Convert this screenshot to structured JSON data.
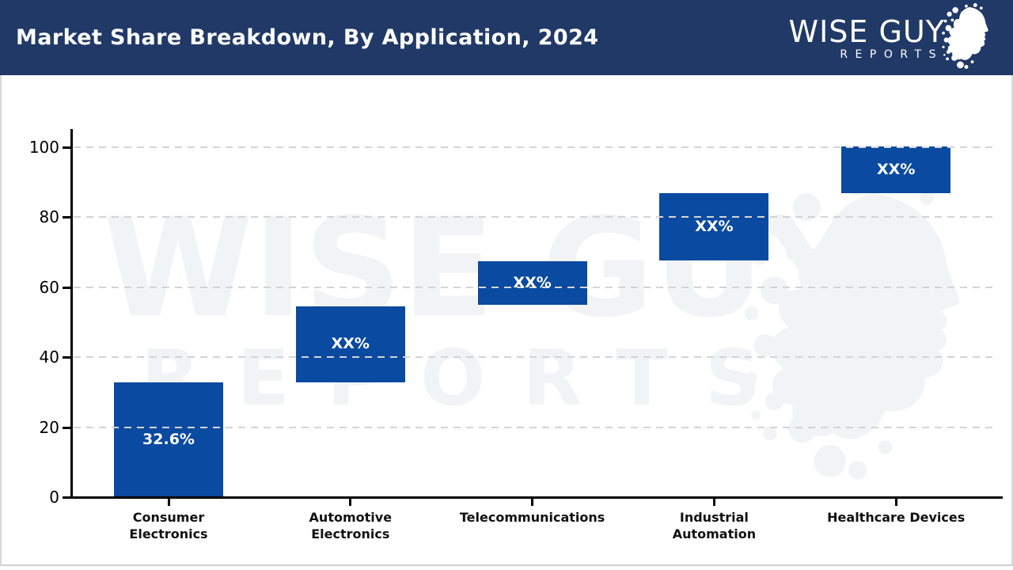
{
  "header": {
    "title": "Market Share Breakdown, By Application, 2024",
    "logo": {
      "line1": "WISE GUY",
      "line2": "REPORTS"
    }
  },
  "watermark": {
    "line1": "WISE GUY",
    "line2": "REPORTS"
  },
  "chart_data": {
    "type": "bar",
    "variant": "waterfall",
    "title": "Market Share Breakdown, By Application, 2024",
    "xlabel": "",
    "ylabel": "",
    "categories": [
      "Consumer\nElectronics",
      "Automotive\nElectronics",
      "Telecommunications",
      "Industrial\nAutomation",
      "Healthcare Devices"
    ],
    "series": [
      {
        "name": "Market Share (%)",
        "segments": [
          {
            "category": "Consumer Electronics",
            "start": 0,
            "end": 32.6,
            "label": "32.6%"
          },
          {
            "category": "Automotive Electronics",
            "start": 32.6,
            "end": 54.3,
            "label": "XX%"
          },
          {
            "category": "Telecommunications",
            "start": 54.8,
            "end": 67.2,
            "label": "XX%"
          },
          {
            "category": "Industrial Automation",
            "start": 67.4,
            "end": 86.6,
            "label": "XX%"
          },
          {
            "category": "Healthcare Devices",
            "start": 86.7,
            "end": 100,
            "label": "XX%"
          }
        ]
      }
    ],
    "yticks": [
      0,
      20,
      40,
      60,
      80,
      100
    ],
    "ylim": [
      0,
      105
    ],
    "grid": "horizontal-dashed",
    "legend": "none",
    "colors": {
      "bar": "#0a4aa0",
      "bar_label": "#ffffff",
      "axis": "#000000",
      "gridline": "#d4d4d4",
      "header_bg": "#213966",
      "watermark": "#f2f3f5"
    }
  }
}
